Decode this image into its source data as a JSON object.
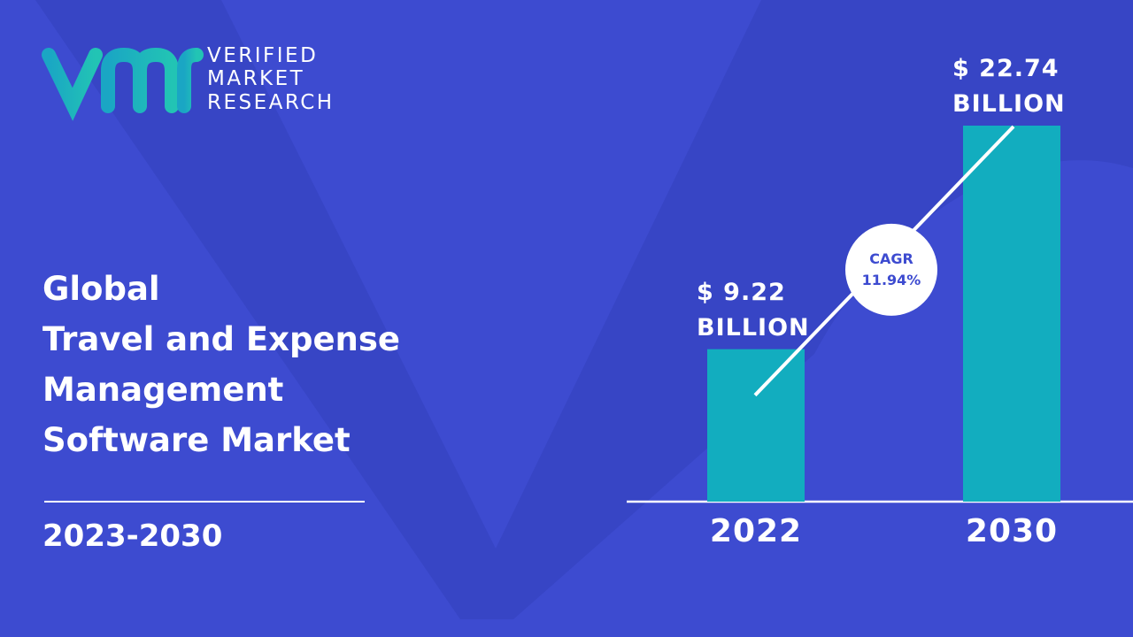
{
  "logo": {
    "lines": [
      "VERIFIED",
      "MARKET",
      "RESEARCH"
    ]
  },
  "title_lines": [
    "Global",
    "Travel and Expense",
    "Management",
    "Software Market"
  ],
  "period": "2023-2030",
  "chart_data": {
    "type": "bar",
    "categories": [
      "2022",
      "2030"
    ],
    "values": [
      9.22,
      22.74
    ],
    "value_labels": [
      "$ 9.22 BILLION",
      "$ 22.74 BILLION"
    ],
    "color": "#12adbf",
    "annotation": {
      "label": "CAGR",
      "value": "11.94%"
    }
  }
}
